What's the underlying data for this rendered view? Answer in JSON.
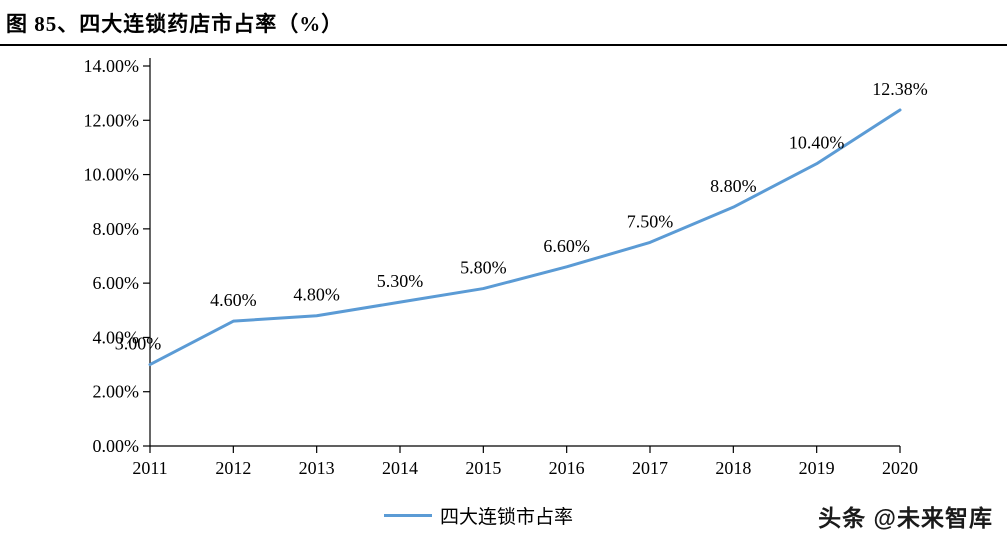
{
  "title": "图 85、四大连锁药店市占率（%）",
  "watermark": "头条 @未来智库",
  "colors": {
    "line": "#5B9BD5",
    "axis": "#000000",
    "text": "#000000"
  },
  "chart_data": {
    "type": "line",
    "title": "图 85、四大连锁药店市占率（%）",
    "x": [
      2011,
      2012,
      2013,
      2014,
      2015,
      2016,
      2017,
      2018,
      2019,
      2020
    ],
    "values": [
      3.0,
      4.6,
      4.8,
      5.3,
      5.8,
      6.6,
      7.5,
      8.8,
      10.4,
      12.38
    ],
    "labels": [
      "3.00%",
      "4.60%",
      "4.80%",
      "5.30%",
      "5.80%",
      "6.60%",
      "7.50%",
      "8.80%",
      "10.40%",
      "12.38%"
    ],
    "label_dx": [
      -12,
      0,
      0,
      0,
      0,
      0,
      0,
      0,
      0,
      0
    ],
    "ylim": [
      0,
      14
    ],
    "ytick_step": 2,
    "ytick_labels": [
      "0.00%",
      "2.00%",
      "4.00%",
      "6.00%",
      "8.00%",
      "10.00%",
      "12.00%",
      "14.00%"
    ],
    "xlabel": "",
    "ylabel": "",
    "grid": false,
    "legend": "四大连锁市占率",
    "legend_position": "bottom"
  }
}
